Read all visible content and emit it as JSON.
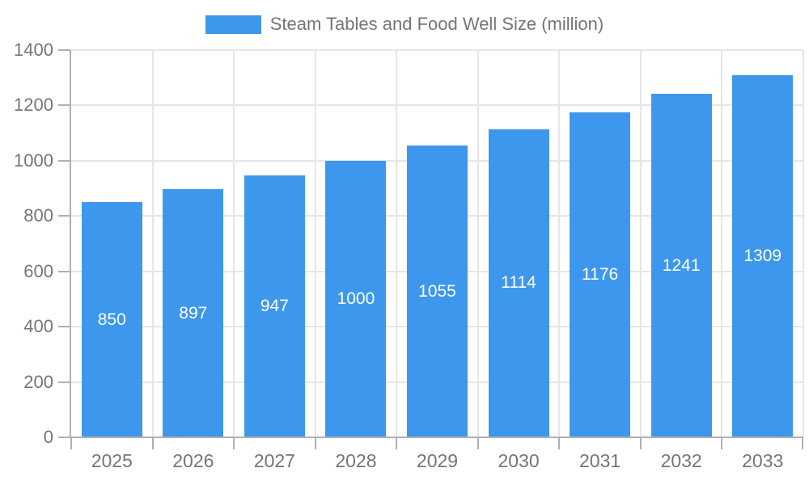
{
  "chart_data": {
    "type": "bar",
    "title": "Steam Tables and Food Well Size (million)",
    "categories": [
      "2025",
      "2026",
      "2027",
      "2028",
      "2029",
      "2030",
      "2031",
      "2032",
      "2033"
    ],
    "values": [
      850,
      897,
      947,
      1000,
      1055,
      1114,
      1176,
      1241,
      1309
    ],
    "xlabel": "",
    "ylabel": "",
    "ylim": [
      0,
      1400
    ],
    "yticks": [
      0,
      200,
      400,
      600,
      800,
      1000,
      1200,
      1400
    ],
    "grid": true,
    "legend_position": "top",
    "value_labels": "inside-center",
    "bar_color": "#3d98ed",
    "value_label_color": "#ffffff",
    "axis_text_color": "#757575",
    "grid_color": "#e6e6e6",
    "axis_line_color": "#b0b0b0"
  }
}
